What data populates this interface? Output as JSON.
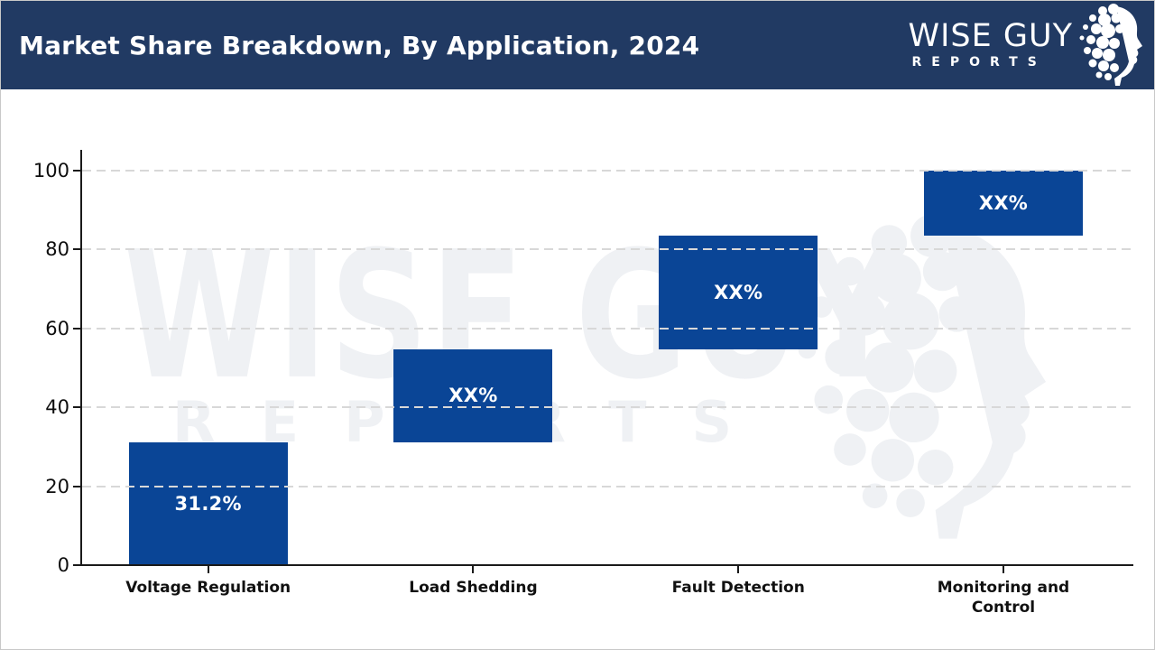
{
  "header": {
    "title": "Market Share Breakdown, By Application, 2024",
    "bg_color": "#213a63",
    "logo": {
      "line1": "WISE GUY",
      "line2": "REPORTS",
      "head_icon": "wiseguy-head-icon"
    }
  },
  "watermark": {
    "line1": "WISE GUY",
    "line2": "REPORTS"
  },
  "chart_data": {
    "type": "bar",
    "variant": "waterfall",
    "title": "Market Share Breakdown, By Application, 2024",
    "categories": [
      "Voltage Regulation",
      "Load Shedding",
      "Fault Detection",
      "Monitoring and Control"
    ],
    "segments": [
      {
        "category": "Voltage Regulation",
        "start": 0,
        "end": 31.2,
        "label": "31.2%"
      },
      {
        "category": "Load Shedding",
        "start": 31.2,
        "end": 54.7,
        "label": "XX%"
      },
      {
        "category": "Fault Detection",
        "start": 54.7,
        "end": 83.4,
        "label": "XX%"
      },
      {
        "category": "Monitoring and Control",
        "start": 83.4,
        "end": 100,
        "label": "XX%"
      }
    ],
    "x_tick_lines": [
      [
        "Voltage Regulation"
      ],
      [
        "Load Shedding"
      ],
      [
        "Fault Detection"
      ],
      [
        "Monitoring and",
        "Control"
      ]
    ],
    "y_ticks": [
      0,
      20,
      40,
      60,
      80,
      100
    ],
    "ylim": [
      0,
      105
    ],
    "xlabel": "",
    "ylabel": "",
    "legend": "none",
    "grid": "horizontal-dashed",
    "bar_color": "#0a4596",
    "bar_label_color": "#ffffff",
    "grid_color": "#d8d8d8",
    "axis_color": "#1a1a1a"
  }
}
